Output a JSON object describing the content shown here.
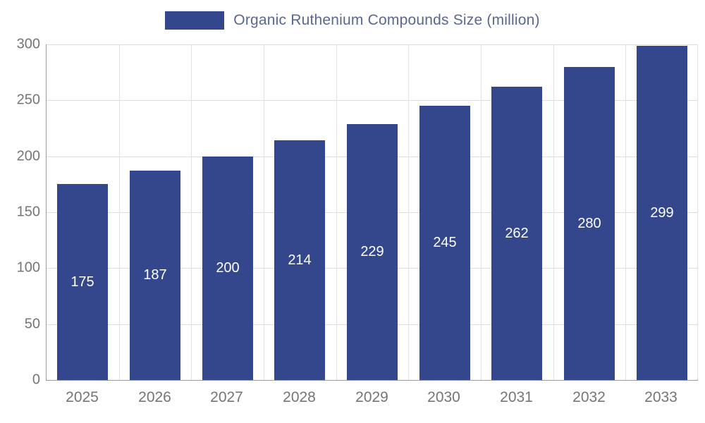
{
  "legend": {
    "label": "Organic Ruthenium Compounds Size (million)"
  },
  "colors": {
    "bar": "#35478C",
    "bar_label": "#ffffff",
    "legend_text": "#5a6791",
    "axis_line": "#999999",
    "gridline": "#dddddd",
    "tick_text": "#757575",
    "background": "#ffffff"
  },
  "chart_data": {
    "type": "bar",
    "title": "Organic Ruthenium Compounds Size (million)",
    "categories": [
      "2025",
      "2026",
      "2027",
      "2028",
      "2029",
      "2030",
      "2031",
      "2032",
      "2033"
    ],
    "values": [
      175,
      187,
      200,
      214,
      229,
      245,
      262,
      280,
      299
    ],
    "series": [
      {
        "name": "Organic Ruthenium Compounds Size (million)",
        "values": [
          175,
          187,
          200,
          214,
          229,
          245,
          262,
          280,
          299
        ]
      }
    ],
    "xlabel": "",
    "ylabel": "",
    "ylim": [
      0,
      300
    ],
    "yticks": [
      0,
      50,
      100,
      150,
      200,
      250,
      300
    ],
    "grid": true,
    "legend_position": "top",
    "bar_labels": true
  }
}
